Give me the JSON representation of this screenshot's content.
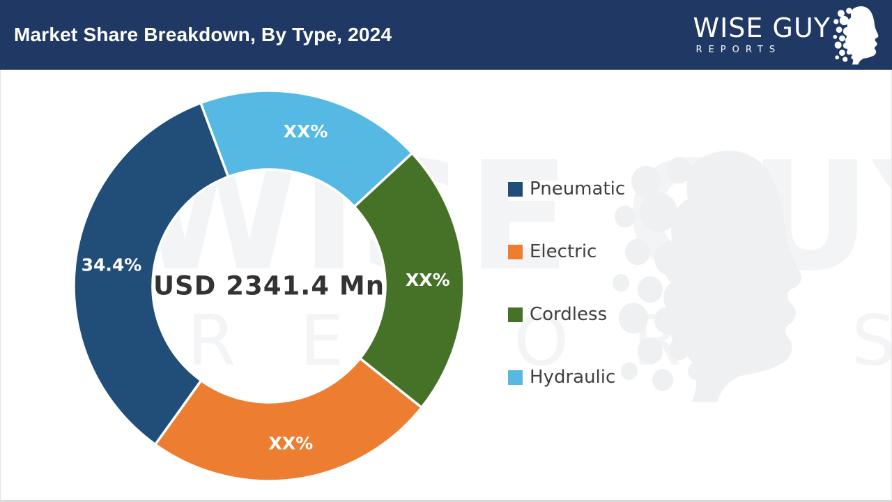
{
  "header": {
    "title": "Market Share Breakdown, By Type, 2024",
    "bg_color": "#203864",
    "logo": {
      "line1": "WISE GUY",
      "line2": "REPORTS"
    }
  },
  "watermark": {
    "line1": "WISE GUY",
    "line2": "R E P O R T S"
  },
  "chart_data": {
    "type": "pie",
    "subtype": "donut",
    "title": "Market Share Breakdown, By Type, 2024",
    "center_label": "USD 2341.4 Mn",
    "start_angle_deg_from_top": -20.5,
    "outer_radius_px": 280,
    "inner_radius_px": 167,
    "label_radius_px": 228,
    "segments": [
      {
        "name": "Hydraulic",
        "value_pct": 18.8,
        "label": "XX%",
        "color": "#55B9E3"
      },
      {
        "name": "Cordless",
        "value_pct": 22.6,
        "label": "XX%",
        "color": "#467228"
      },
      {
        "name": "Electric",
        "value_pct": 24.2,
        "label": "XX%",
        "color": "#ED7D31"
      },
      {
        "name": "Pneumatic",
        "value_pct": 34.4,
        "label": "34.4%",
        "color": "#204E78"
      }
    ],
    "legend": {
      "position": "right",
      "items": [
        "Pneumatic",
        "Electric",
        "Cordless",
        "Hydraulic"
      ]
    }
  }
}
